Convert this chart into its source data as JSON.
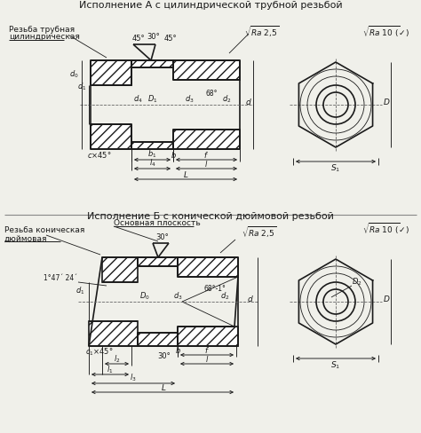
{
  "bg_color": "#f0f0ea",
  "line_color": "#1a1a1a",
  "title_A": "Исполнение А с цилиндрической трубной резьбой",
  "title_B": "Исполнение Б с конической дюймовой резьбой",
  "label_A_line1": "Резьба трубная",
  "label_A_line2": "цилиндрическая",
  "label_B_line1": "Резьба коническая",
  "label_B_line2": "дюймовая",
  "label_B_mid": "Основная плоскость",
  "angle_30": "30°",
  "angle_45L": "45°",
  "angle_45R": "45°",
  "angle_68A": "68°",
  "angle_68B": "68°-1°",
  "angle_1_47": "1°47´ 24´",
  "angle_30B": "30°",
  "ra_25": "Ra 2,5",
  "ra_10": "Ra 10 (\\/)"
}
